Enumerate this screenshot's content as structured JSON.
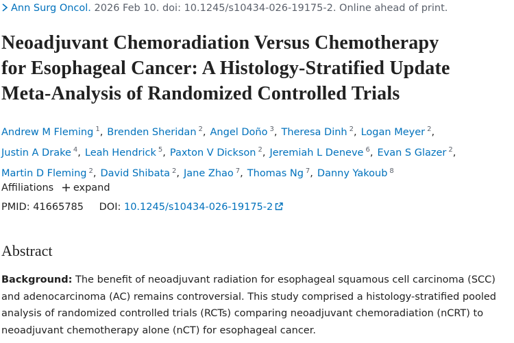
{
  "citation": {
    "journal": "Ann Surg Oncol.",
    "details": "2026 Feb 10. doi: 10.1245/s10434-026-19175-2. Online ahead of print."
  },
  "title_lines": [
    "Neoadjuvant Chemoradiation Versus Chemotherapy",
    "for Esophageal Cancer: A Histology-Stratified Update",
    "Meta-Analysis of Randomized Controlled Trials"
  ],
  "authors": [
    [
      {
        "name": "Andrew M Fleming",
        "aff": 1
      },
      {
        "name": "Brenden Sheridan",
        "aff": 2
      },
      {
        "name": "Angel Doño",
        "aff": 3
      },
      {
        "name": "Theresa Dinh",
        "aff": 2
      },
      {
        "name": "Logan Meyer",
        "aff": 2
      }
    ],
    [
      {
        "name": "Justin A Drake",
        "aff": 4
      },
      {
        "name": "Leah Hendrick",
        "aff": 5
      },
      {
        "name": "Paxton V Dickson",
        "aff": 2
      },
      {
        "name": "Jeremiah L Deneve",
        "aff": 6
      },
      {
        "name": "Evan S Glazer",
        "aff": 2
      }
    ],
    [
      {
        "name": "Martin D Fleming",
        "aff": 2
      },
      {
        "name": "David Shibata",
        "aff": 2
      },
      {
        "name": "Jane Zhao",
        "aff": 7
      },
      {
        "name": "Thomas Ng",
        "aff": 7
      },
      {
        "name": "Danny Yakoub",
        "aff": 8
      }
    ]
  ],
  "affiliations": {
    "label": "Affiliations",
    "toggle": "expand"
  },
  "identifiers": {
    "pmid_label": "PMID:",
    "pmid": "41665785",
    "doi_label": "DOI:",
    "doi": "10.1245/s10434-026-19175-2"
  },
  "abstract": {
    "heading": "Abstract",
    "background_label": "Background:",
    "background_text": "The benefit of neoadjuvant radiation for esophageal squamous cell carcinoma (SCC) and adenocarcinoma (AC) remains controversial. This study comprised a histology-stratified pooled analysis of randomized controlled trials (RCTs) comparing neoadjuvant chemoradiation (nCRT) to neoadjuvant chemotherapy alone (nCT) for esophageal cancer."
  }
}
